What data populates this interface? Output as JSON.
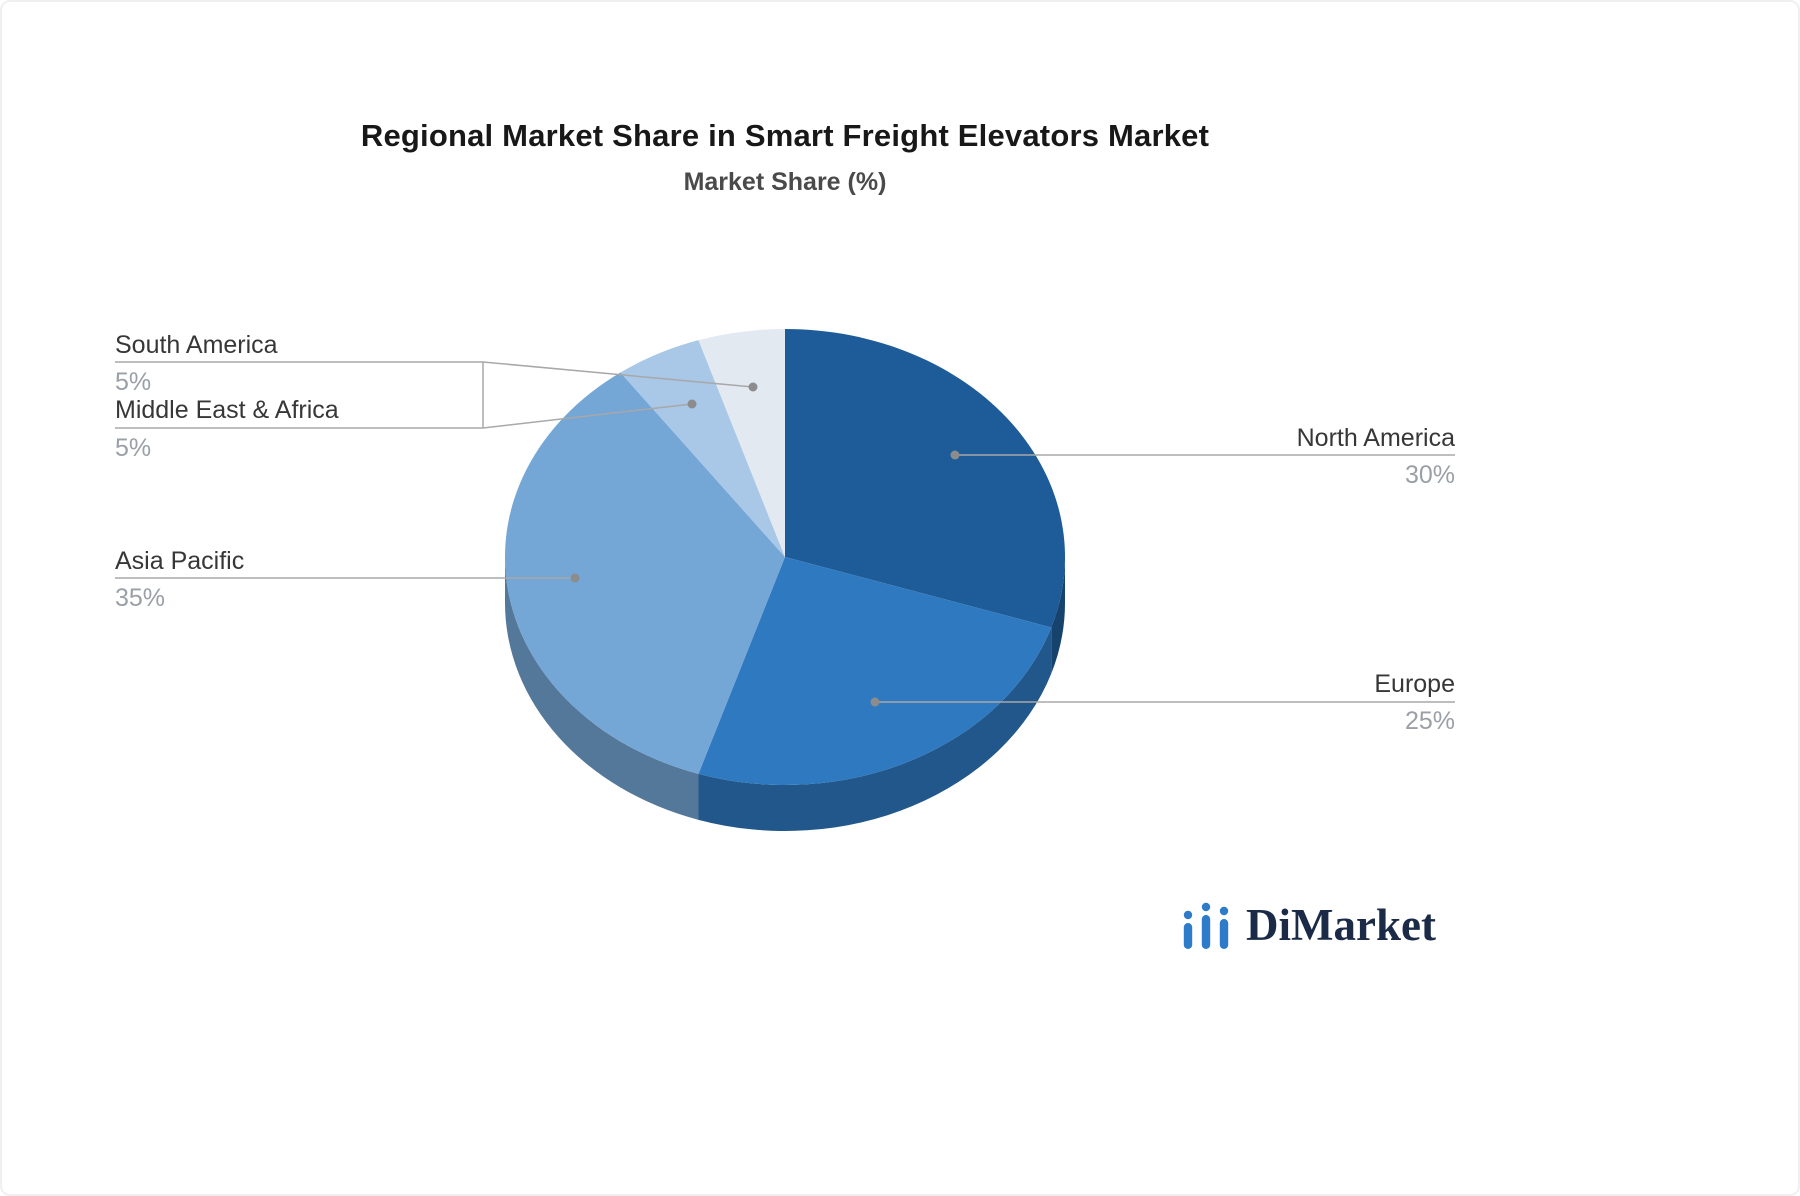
{
  "chart_data": {
    "type": "pie",
    "title": "Regional Market Share in Smart Freight Elevators Market",
    "subtitle": "Market Share (%)",
    "unit": "%",
    "legend": "none",
    "start_angle_deg": -90,
    "direction": "clockwise",
    "slices": [
      {
        "name": "North America",
        "value": 30,
        "label": "30%",
        "color": "#1e5c99"
      },
      {
        "name": "Europe",
        "value": 25,
        "label": "25%",
        "color": "#2e79c0"
      },
      {
        "name": "Asia Pacific",
        "value": 35,
        "label": "35%",
        "color": "#74a6d6"
      },
      {
        "name": "Middle East & Africa",
        "value": 5,
        "label": "5%",
        "color": "#a9c7e6"
      },
      {
        "name": "South America",
        "value": 5,
        "label": "5%",
        "color": "#e3e9f0"
      }
    ]
  },
  "brand": {
    "name": "DiMarket",
    "accent": "#2e7cc9",
    "text_color": "#1a2a47"
  }
}
